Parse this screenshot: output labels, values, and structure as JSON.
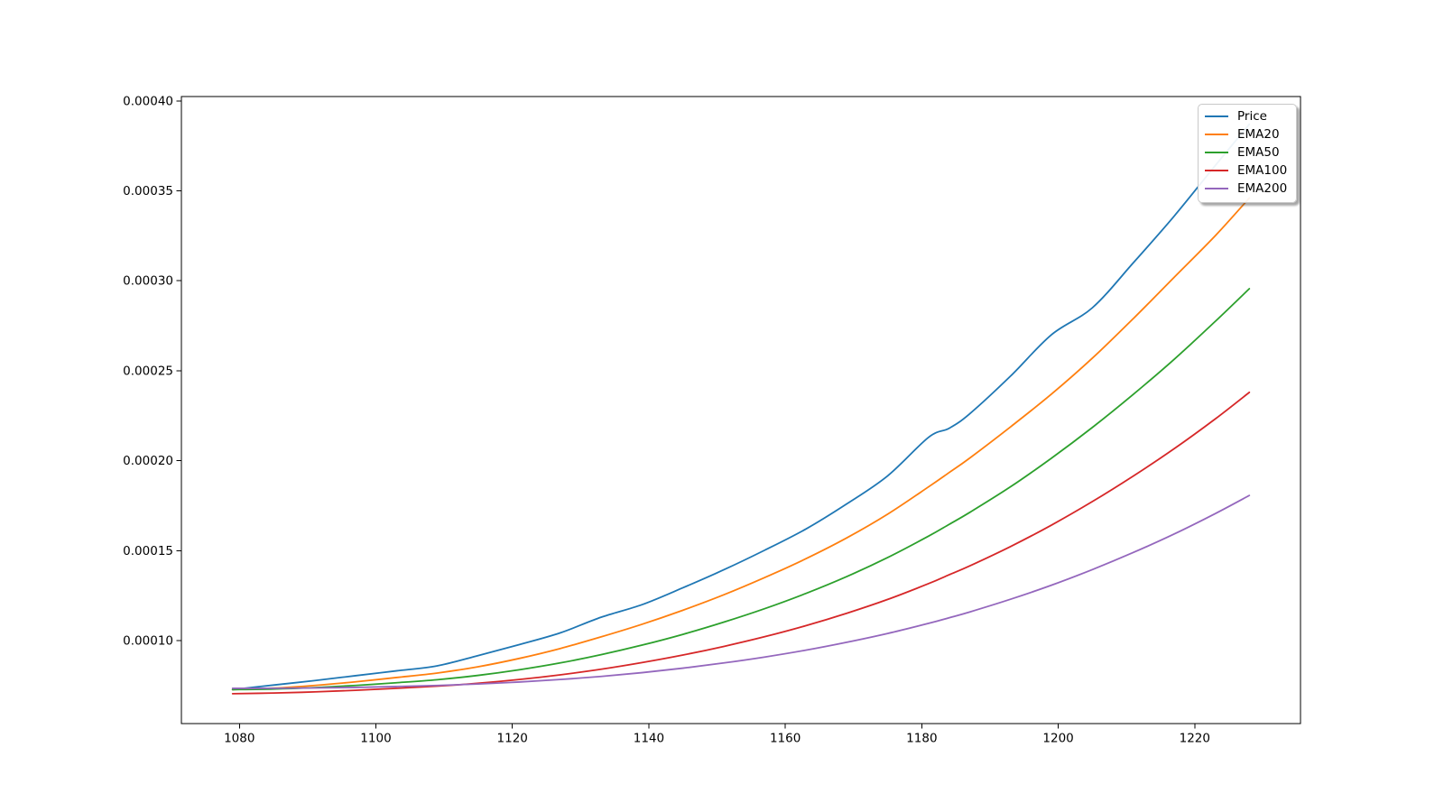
{
  "chart_data": {
    "type": "line",
    "title": "",
    "xlabel": "",
    "ylabel": "",
    "grid": false,
    "legend_position": "upper right",
    "xlim": [
      1071.5,
      1235.5
    ],
    "ylim": [
      5.39e-05,
      0.0004024
    ],
    "x_ticks": [
      1080,
      1100,
      1120,
      1140,
      1160,
      1180,
      1200,
      1220
    ],
    "x_tick_labels": [
      "1080",
      "1100",
      "1120",
      "1140",
      "1160",
      "1180",
      "1200",
      "1220"
    ],
    "y_ticks": [
      0.0001,
      0.00015,
      0.0002,
      0.00025,
      0.0003,
      0.00035,
      0.0004
    ],
    "y_tick_labels": [
      "0.00010",
      "0.00015",
      "0.00020",
      "0.00025",
      "0.00030",
      "0.00035",
      "0.00040"
    ],
    "x": [
      1079,
      1085,
      1091,
      1097,
      1103,
      1109,
      1115,
      1121,
      1127,
      1133,
      1139,
      1145,
      1151,
      1157,
      1163,
      1169,
      1175,
      1181,
      1184,
      1187,
      1193,
      1199,
      1205,
      1211,
      1217,
      1223,
      1228
    ],
    "series": [
      {
        "name": "Price",
        "color": "#1f77b4",
        "values": [
          7.28e-05,
          7.53e-05,
          7.78e-05,
          8.05e-05,
          8.32e-05,
          8.6e-05,
          9.17e-05,
          9.78e-05,
          0.0001043,
          0.000113,
          0.00012,
          0.0001294,
          0.0001394,
          0.0001503,
          0.000162,
          0.000176,
          0.0001916,
          0.000213,
          0.000218,
          0.000226,
          0.000247,
          0.00027,
          0.000285,
          0.00031,
          0.000336,
          0.000364,
          0.000387
        ]
      },
      {
        "name": "EMA20",
        "color": "#ff7f0e",
        "values": [
          7.28e-05,
          7.36e-05,
          7.51e-05,
          7.71e-05,
          7.95e-05,
          8.2e-05,
          8.55e-05,
          9.01e-05,
          9.56e-05,
          0.0001021,
          0.0001091,
          0.0001169,
          0.0001255,
          0.0001351,
          0.0001455,
          0.0001571,
          0.0001703,
          0.0001855,
          0.0001934,
          0.0002014,
          0.0002188,
          0.000237,
          0.000257,
          0.000279,
          0.000302,
          0.000325,
          0.000346
        ]
      },
      {
        "name": "EMA50",
        "color": "#2ca02c",
        "values": [
          7.28e-05,
          7.31e-05,
          7.39e-05,
          7.51e-05,
          7.66e-05,
          7.83e-05,
          8.07e-05,
          8.38e-05,
          8.76e-05,
          9.22e-05,
          9.75e-05,
          0.0001035,
          0.0001103,
          0.0001178,
          0.0001262,
          0.0001356,
          0.0001462,
          0.0001581,
          0.0001646,
          0.0001712,
          0.0001855,
          0.0002014,
          0.0002185,
          0.0002369,
          0.0002564,
          0.0002774,
          0.0002956
        ]
      },
      {
        "name": "EMA100",
        "color": "#d62728",
        "values": [
          7.05e-05,
          7.09e-05,
          7.15e-05,
          7.24e-05,
          7.35e-05,
          7.47e-05,
          7.63e-05,
          7.84e-05,
          8.1e-05,
          8.41e-05,
          8.78e-05,
          9.2e-05,
          9.68e-05,
          0.0001022,
          0.0001083,
          0.0001152,
          0.0001229,
          0.0001317,
          0.0001366,
          0.0001415,
          0.0001523,
          0.0001642,
          0.0001773,
          0.0001915,
          0.0002067,
          0.0002232,
          0.000238
        ]
      },
      {
        "name": "EMA200",
        "color": "#9467bd",
        "values": [
          7.35e-05,
          7.35e-05,
          7.37e-05,
          7.4e-05,
          7.45e-05,
          7.51e-05,
          7.59e-05,
          7.7e-05,
          7.84e-05,
          8.01e-05,
          8.22e-05,
          8.47e-05,
          8.76e-05,
          9.09e-05,
          9.47e-05,
          9.91e-05,
          0.000104,
          0.0001096,
          0.0001127,
          0.0001159,
          0.000123,
          0.0001308,
          0.0001395,
          0.000149,
          0.0001593,
          0.0001706,
          0.0001807
        ]
      }
    ]
  }
}
